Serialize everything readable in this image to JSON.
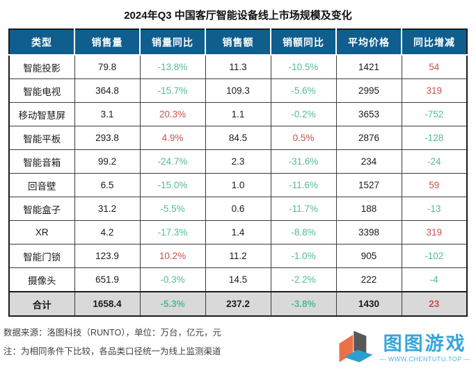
{
  "palette": {
    "header_bg": "#0f5e8e",
    "positive_red": "#c9514d",
    "negative_green": "#4fbd8c",
    "total_row_bg": "#d9d9d9",
    "logo_blue": "#35a6d9",
    "logo_orange": "#e8714a",
    "logo_gray": "#57585a"
  },
  "chart_data": {
    "type": "table",
    "title": "2024年Q3 中国客厅智能设备线上市场规模及变化",
    "columns": [
      "类型",
      "销售量",
      "销量同比",
      "销售额",
      "销额同比",
      "平均价格",
      "同比增减"
    ],
    "rows": [
      [
        "智能投影",
        "79.8",
        "-13.8%",
        "11.3",
        "-10.5%",
        "1421",
        "54"
      ],
      [
        "智能电视",
        "364.8",
        "-15.7%",
        "109.3",
        "-5.6%",
        "2995",
        "319"
      ],
      [
        "移动智慧屏",
        "3.1",
        "20.3%",
        "1.1",
        "-0.2%",
        "3653",
        "-752"
      ],
      [
        "智能平板",
        "293.8",
        "4.9%",
        "84.5",
        "0.5%",
        "2876",
        "-128"
      ],
      [
        "智能音箱",
        "99.2",
        "-24.7%",
        "2.3",
        "-31.6%",
        "234",
        "-24"
      ],
      [
        "回音壁",
        "6.5",
        "-15.0%",
        "1.0",
        "-11.6%",
        "1527",
        "59"
      ],
      [
        "智能盒子",
        "31.2",
        "-5.5%",
        "0.6",
        "-11.7%",
        "188",
        "-13"
      ],
      [
        "XR",
        "4.2",
        "-17.3%",
        "1.4",
        "-8.8%",
        "3398",
        "319"
      ],
      [
        "智能门锁",
        "123.9",
        "10.2%",
        "11.2",
        "-1.0%",
        "905",
        "-102"
      ],
      [
        "摄像头",
        "651.9",
        "-0.3%",
        "14.5",
        "-2.2%",
        "222",
        "-4"
      ],
      [
        "合计",
        "1658.4",
        "-5.3%",
        "237.2",
        "-3.8%",
        "1430",
        "23"
      ]
    ],
    "colored_columns": [
      2,
      4,
      6
    ],
    "color_rule": "negative values green, positive values red",
    "units": "万台，亿元，元"
  },
  "footnotes": {
    "source": "数据来源：洛图科技（RUNTO），单位：万台，亿元，元",
    "note": "注：为相同条件下比较，各品类口径统一为线上监测渠道"
  },
  "logo": {
    "name": "图图游戏",
    "url": "— WWW.CHENTUTU.TOP —"
  }
}
